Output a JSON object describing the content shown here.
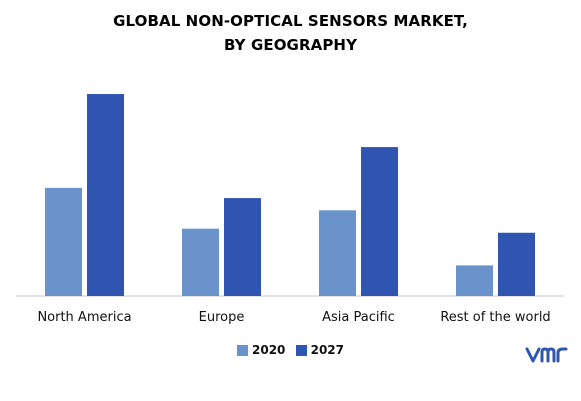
{
  "chart_data": {
    "type": "bar",
    "title_line1": "GLOBAL NON-OPTICAL SENSORS MARKET,",
    "title_line2": "BY GEOGRAPHY",
    "categories": [
      "North America",
      "Europe",
      "Asia Pacific",
      "Rest of the world"
    ],
    "series": [
      {
        "name": "2020",
        "values": [
          53,
          33,
          42,
          15
        ],
        "color": "#6a93cc"
      },
      {
        "name": "2027",
        "values": [
          99,
          48,
          73,
          31
        ],
        "color": "#2f55b0"
      }
    ],
    "ylim": [
      0,
      100
    ],
    "grid": false,
    "legend_position": "bottom"
  },
  "legend": {
    "s1": "2020",
    "s2": "2027"
  },
  "colors": {
    "axis": "#c8c8c8",
    "logo": "#2f55b0"
  },
  "logo_icon": "vmr-logo"
}
